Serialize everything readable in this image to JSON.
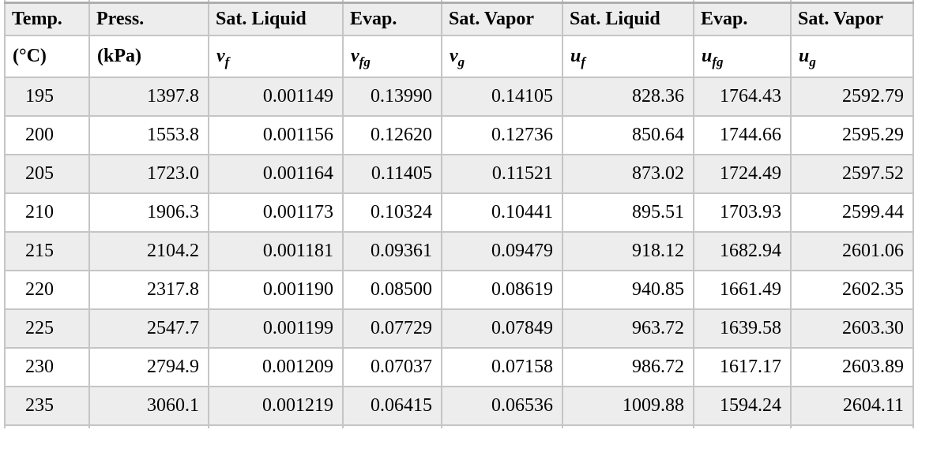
{
  "table": {
    "title": "saturated-water-temperature-table",
    "header_labels": [
      "Temp.",
      "Press.",
      "Sat. Liquid",
      "Evap.",
      "Sat. Vapor",
      "Sat. Liquid",
      "Evap.",
      "Sat. Vapor"
    ],
    "header_symbols": [
      {
        "text": "(°C)"
      },
      {
        "text": "(kPa)"
      },
      {
        "base": "v",
        "sub": "f"
      },
      {
        "base": "v",
        "sub": "fg"
      },
      {
        "base": "v",
        "sub": "g"
      },
      {
        "base": "u",
        "sub": "f"
      },
      {
        "base": "u",
        "sub": "fg"
      },
      {
        "base": "u",
        "sub": "g"
      }
    ],
    "rows": [
      [
        "195",
        "1397.8",
        "0.001149",
        "0.13990",
        "0.14105",
        "828.36",
        "1764.43",
        "2592.79"
      ],
      [
        "200",
        "1553.8",
        "0.001156",
        "0.12620",
        "0.12736",
        "850.64",
        "1744.66",
        "2595.29"
      ],
      [
        "205",
        "1723.0",
        "0.001164",
        "0.11405",
        "0.11521",
        "873.02",
        "1724.49",
        "2597.52"
      ],
      [
        "210",
        "1906.3",
        "0.001173",
        "0.10324",
        "0.10441",
        "895.51",
        "1703.93",
        "2599.44"
      ],
      [
        "215",
        "2104.2",
        "0.001181",
        "0.09361",
        "0.09479",
        "918.12",
        "1682.94",
        "2601.06"
      ],
      [
        "220",
        "2317.8",
        "0.001190",
        "0.08500",
        "0.08619",
        "940.85",
        "1661.49",
        "2602.35"
      ],
      [
        "225",
        "2547.7",
        "0.001199",
        "0.07729",
        "0.07849",
        "963.72",
        "1639.58",
        "2603.30"
      ],
      [
        "230",
        "2794.9",
        "0.001209",
        "0.07037",
        "0.07158",
        "986.72",
        "1617.17",
        "2603.89"
      ],
      [
        "235",
        "3060.1",
        "0.001219",
        "0.06415",
        "0.06536",
        "1009.88",
        "1594.24",
        "2604.11"
      ]
    ],
    "colors": {
      "row_shade": "#ededed",
      "row_plain": "#ffffff",
      "border": "#c5c5c5",
      "border_strong": "#aeaeae",
      "text": "#000000"
    }
  }
}
